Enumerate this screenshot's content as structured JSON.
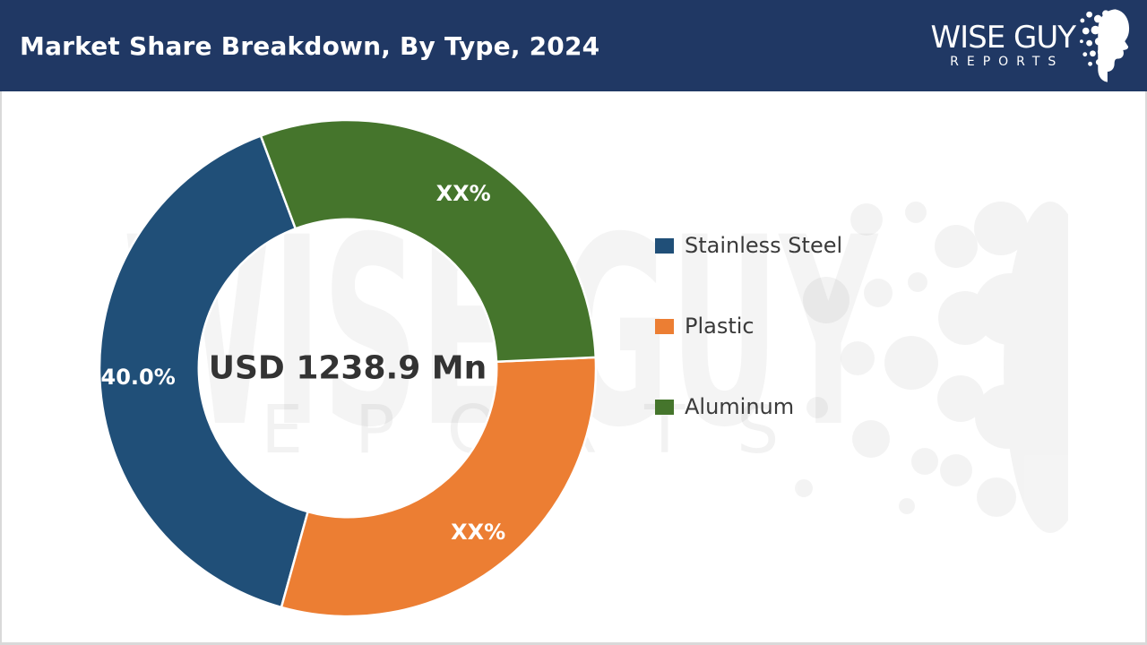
{
  "header": {
    "title": "Market Share Breakdown, By Type, 2024",
    "bg_color": "#203864",
    "logo_line1": "WISE GUY",
    "logo_line2": "REPORTS"
  },
  "watermark": {
    "line1": "WISE GUY",
    "line2": "REPORTS"
  },
  "chart_data": {
    "type": "pie",
    "variant": "donut",
    "title": "Market Share Breakdown, By Type, 2024",
    "center_label": "USD 1238.9 Mn",
    "legend_position": "right",
    "direction": "counterclockwise",
    "start_angle_deg_cw_from_north": 339.5,
    "inner_radius_ratio": 0.6,
    "categories": [
      "Stainless Steel",
      "Plastic",
      "Aluminum"
    ],
    "segments": [
      {
        "label": "Stainless Steel",
        "value_pct": 40.0,
        "display_label": "40.0%",
        "color": "#204F78"
      },
      {
        "label": "Plastic",
        "value_pct": 30.0,
        "display_label": "XX%",
        "color": "#EC7E33"
      },
      {
        "label": "Aluminum",
        "value_pct": 30.0,
        "display_label": "XX%",
        "color": "#45752C"
      }
    ]
  }
}
